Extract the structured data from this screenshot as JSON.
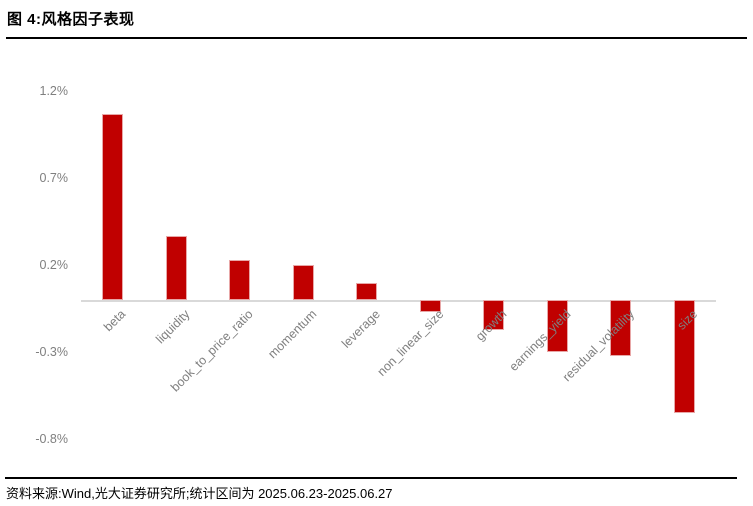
{
  "header": {
    "title": "图 4:风格因子表现"
  },
  "footer": {
    "source": "资料来源:Wind,光大证券研究所;统计区间为 2025.06.23-2025.06.27"
  },
  "chart_data": {
    "type": "bar",
    "title": "风格因子表现",
    "categories": [
      "beta",
      "liquidity",
      "book_to_price_ratio",
      "momentum",
      "leverage",
      "non_linear_size",
      "growth",
      "earnings_yield",
      "residual_volatility",
      "size"
    ],
    "values": [
      1.07,
      0.37,
      0.23,
      0.2,
      0.1,
      -0.07,
      -0.17,
      -0.3,
      -0.32,
      -0.65
    ],
    "unit": "%",
    "xlabel": "",
    "ylabel": "",
    "yticks": {
      "labels": [
        "1.2%",
        "0.7%",
        "0.2%",
        "-0.3%",
        "-0.8%"
      ],
      "values": [
        1.2,
        0.7,
        0.2,
        -0.3,
        -0.8
      ]
    },
    "ylim": [
      -0.95,
      1.3
    ],
    "grid": false,
    "legend": false,
    "bar_color": "#C00000",
    "bar_edge_color": "#E8A7A7",
    "axis_line_color": "#D9D9D9",
    "tick_label_color": "#7F7F7F"
  }
}
